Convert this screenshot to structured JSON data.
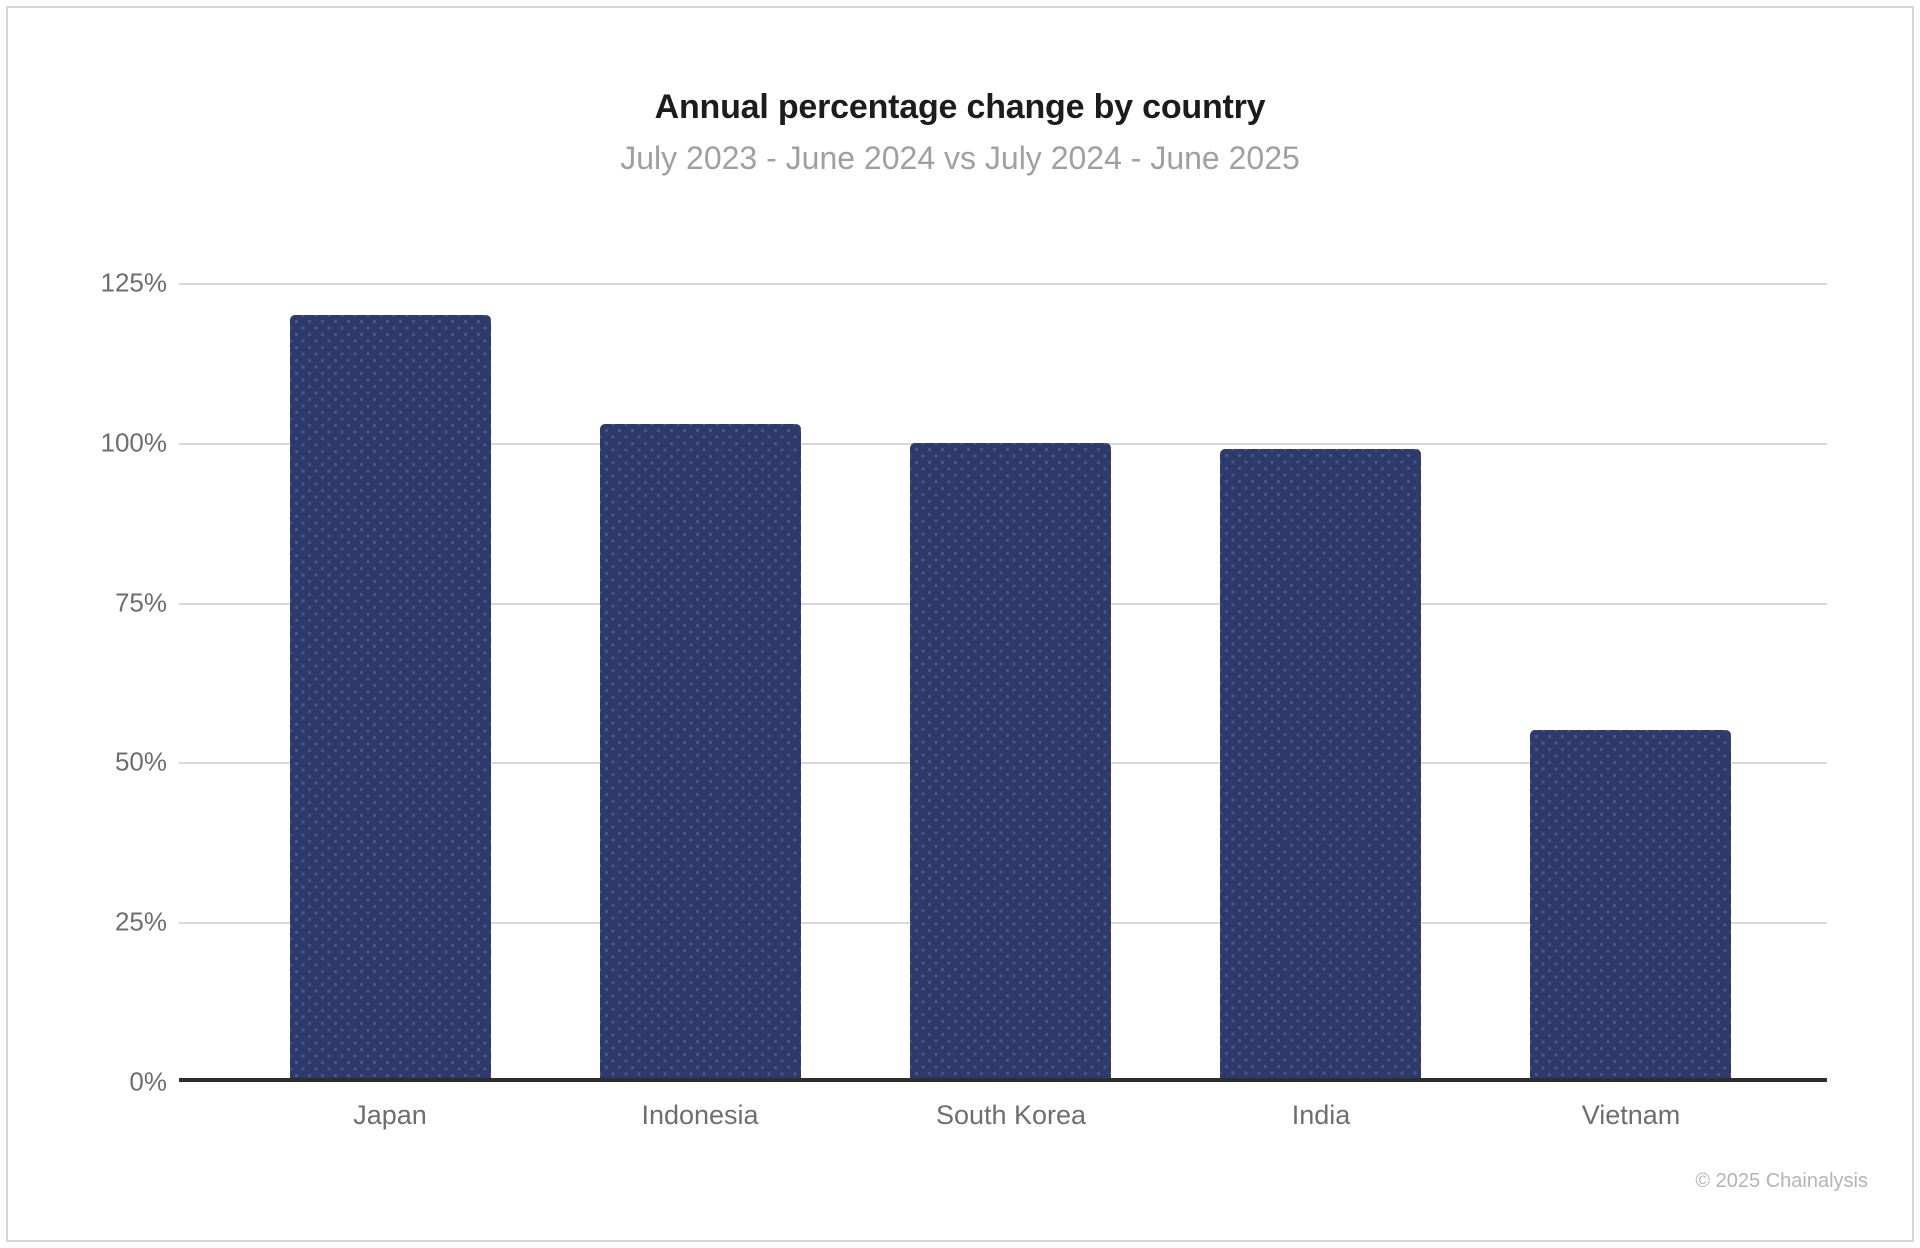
{
  "header": {
    "title": "Annual percentage change by country",
    "subtitle": "July 2023 - June 2024 vs July 2024 - June 2025"
  },
  "footer": {
    "copyright": "© 2025 Chainalysis"
  },
  "chart_data": {
    "type": "bar",
    "title": "Annual percentage change by country",
    "subtitle": "July 2023 - June 2024 vs July 2024 - June 2025",
    "categories": [
      "Japan",
      "Indonesia",
      "South Korea",
      "India",
      "Vietnam"
    ],
    "values": [
      120,
      103,
      100,
      99,
      55
    ],
    "value_unit": "%",
    "xlabel": "",
    "ylabel": "",
    "ylim": [
      0,
      125
    ],
    "ytick_interval": 25,
    "yticks": [
      "0%",
      "25%",
      "50%",
      "75%",
      "100%",
      "125%"
    ],
    "grid": "horizontal",
    "legend": "none",
    "colors": {
      "bar": "#2d3a6c",
      "bar_dot_pattern": "rgba(255,255,255,0.14)",
      "axis_line": "#2d2d2d",
      "gridline": "#d9d9d9",
      "title": "#1c1c1c",
      "subtitle": "#a0a0a0",
      "tick_label": "#6e6e6e",
      "category_label": "#6e6e6e",
      "watermark": "#b4b4b4",
      "frame_border": "#d6d6d6",
      "background": "#ffffff"
    }
  }
}
